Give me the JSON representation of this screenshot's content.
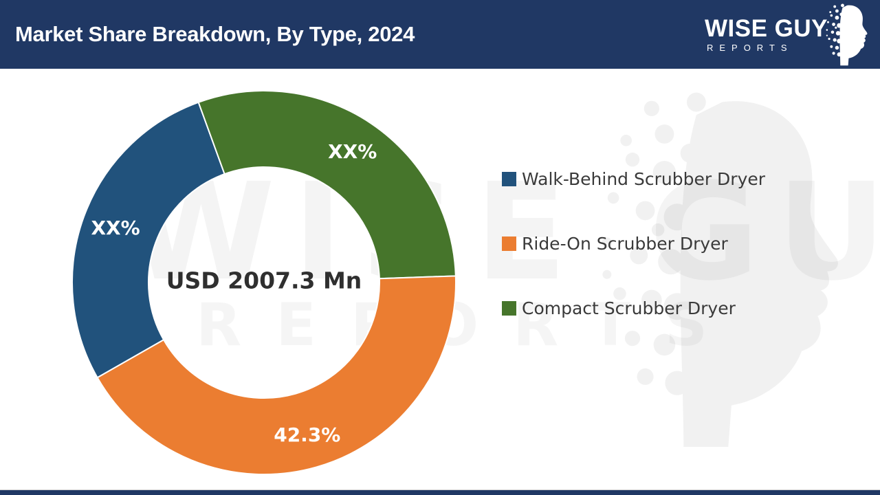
{
  "header": {
    "title": "Market Share Breakdown, By Type, 2024"
  },
  "logo": {
    "line1": "WISE GUY",
    "line2": "REPORTS"
  },
  "watermark": {
    "line1": "WISE GUY",
    "line2": "REPORTS"
  },
  "chart_data": {
    "type": "donut",
    "title": "Market Share Breakdown, By Type, 2024",
    "center_label": "USD 2007.3 Mn",
    "start_angle_deg": 240.3,
    "legend_position": "right",
    "segments": [
      {
        "name": "Walk-Behind Scrubber Dryer",
        "value_pct": 27.7,
        "label": "XX%",
        "color": "#21527C"
      },
      {
        "name": "Compact Scrubber Dryer",
        "value_pct": 30.0,
        "label": "XX%",
        "color": "#46752B"
      },
      {
        "name": "Ride-On Scrubber Dryer",
        "value_pct": 42.3,
        "label": "42.3%",
        "color": "#EB7D31"
      }
    ]
  },
  "legend": {
    "items": [
      {
        "label": "Walk-Behind Scrubber Dryer",
        "color": "#21527C"
      },
      {
        "label": "Ride-On Scrubber Dryer",
        "color": "#EB7D31"
      },
      {
        "label": "Compact Scrubber Dryer",
        "color": "#46752B"
      }
    ]
  },
  "colors": {
    "header_bar": "#203864",
    "footer_bar": "#203864",
    "canvas_bg": "#ffffff",
    "segment_label_text": "#ffffff",
    "center_text": "#2f2f2f",
    "legend_text": "#3a3a3a"
  }
}
